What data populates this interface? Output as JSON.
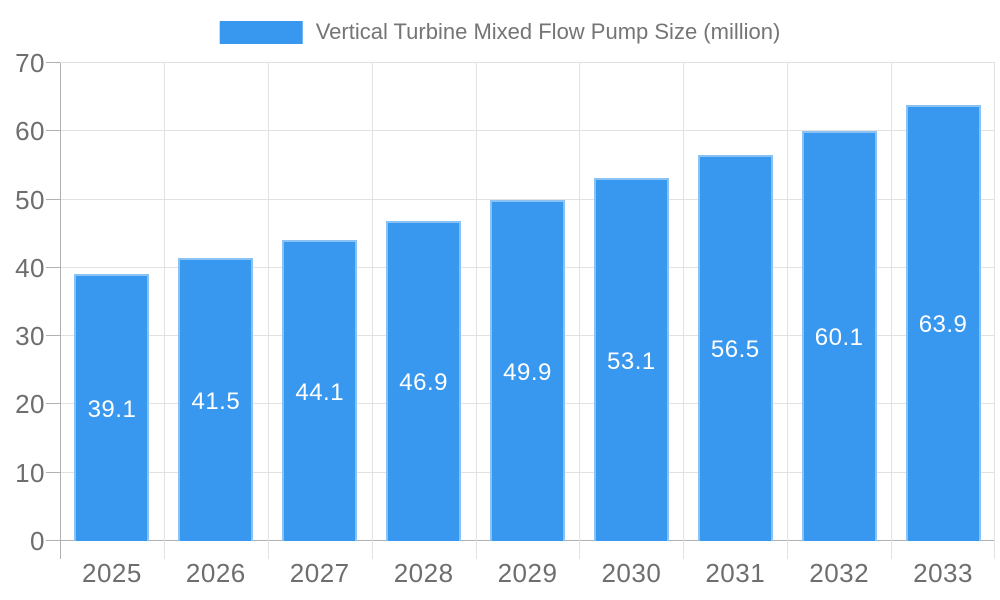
{
  "legend": {
    "label": "Vertical Turbine Mixed Flow Pump Size (million)"
  },
  "chart_data": {
    "type": "bar",
    "title": "",
    "xlabel": "",
    "ylabel": "",
    "categories": [
      "2025",
      "2026",
      "2027",
      "2028",
      "2029",
      "2030",
      "2031",
      "2032",
      "2033"
    ],
    "series": [
      {
        "name": "Vertical Turbine Mixed Flow Pump Size (million)",
        "values": [
          39.1,
          41.5,
          44.1,
          46.9,
          49.9,
          53.1,
          56.5,
          60.1,
          63.9
        ]
      }
    ],
    "data_labels": [
      "39.1",
      "41.5",
      "44.1",
      "46.9",
      "49.9",
      "53.1",
      "56.5",
      "60.1",
      "63.9"
    ],
    "ylim": [
      0,
      70
    ],
    "yticks": [
      0,
      10,
      20,
      30,
      40,
      50,
      60,
      70
    ],
    "grid": true,
    "legend_position": "top-center",
    "colors": {
      "bar_fill": "#3897EE",
      "bar_edge": "#8AC2F4",
      "bar_label": "#FFFFFF",
      "gridline": "#E2E2E2",
      "axis_line": "#B0B0B0",
      "axis_text": "#6E6E6E",
      "legend_text": "#757575"
    }
  }
}
